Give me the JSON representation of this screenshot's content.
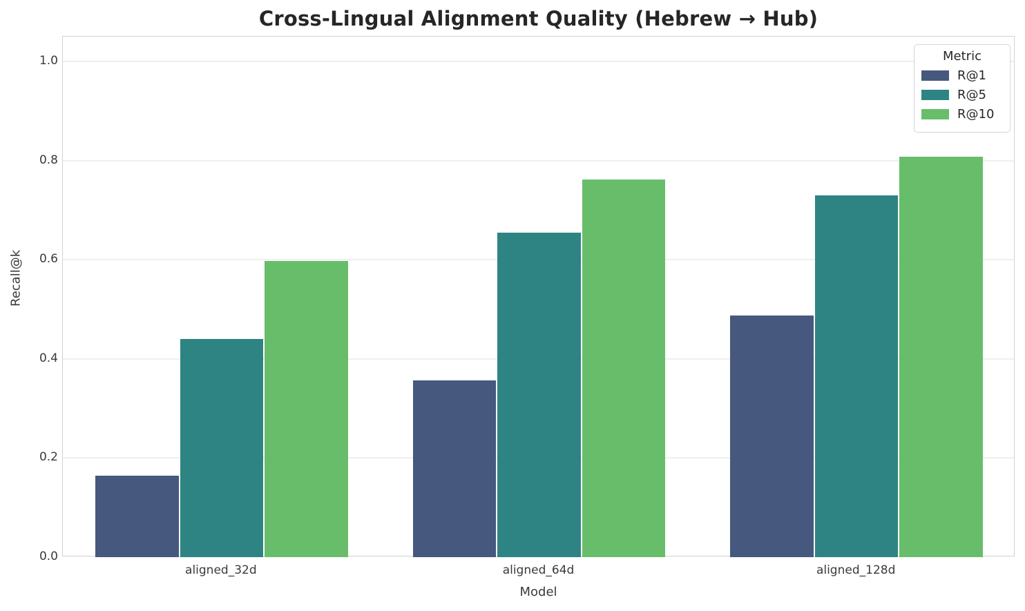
{
  "chart_data": {
    "type": "bar",
    "title": "Cross-Lingual Alignment Quality (Hebrew → Hub)",
    "xlabel": "Model",
    "ylabel": "Recall@k",
    "categories": [
      "aligned_32d",
      "aligned_64d",
      "aligned_128d"
    ],
    "series": [
      {
        "name": "R@1",
        "color": "#46587d",
        "values": [
          0.165,
          0.357,
          0.488
        ]
      },
      {
        "name": "R@5",
        "color": "#2e8482",
        "values": [
          0.44,
          0.655,
          0.73
        ]
      },
      {
        "name": "R@10",
        "color": "#68bd6b",
        "values": [
          0.598,
          0.762,
          0.807
        ]
      }
    ],
    "ylim": [
      0,
      1.05
    ],
    "yticks": [
      0.0,
      0.2,
      0.4,
      0.6,
      0.8,
      1.0
    ],
    "grid": "horizontal-only",
    "legend_title": "Metric",
    "legend_position": "upper right",
    "group_bar_fraction": 0.8,
    "colors": {
      "grid": "#efefef",
      "spine": "#d2d2d2",
      "title_text": "#262626",
      "tick_text": "#3a3a3a",
      "background": "#ffffff"
    }
  }
}
